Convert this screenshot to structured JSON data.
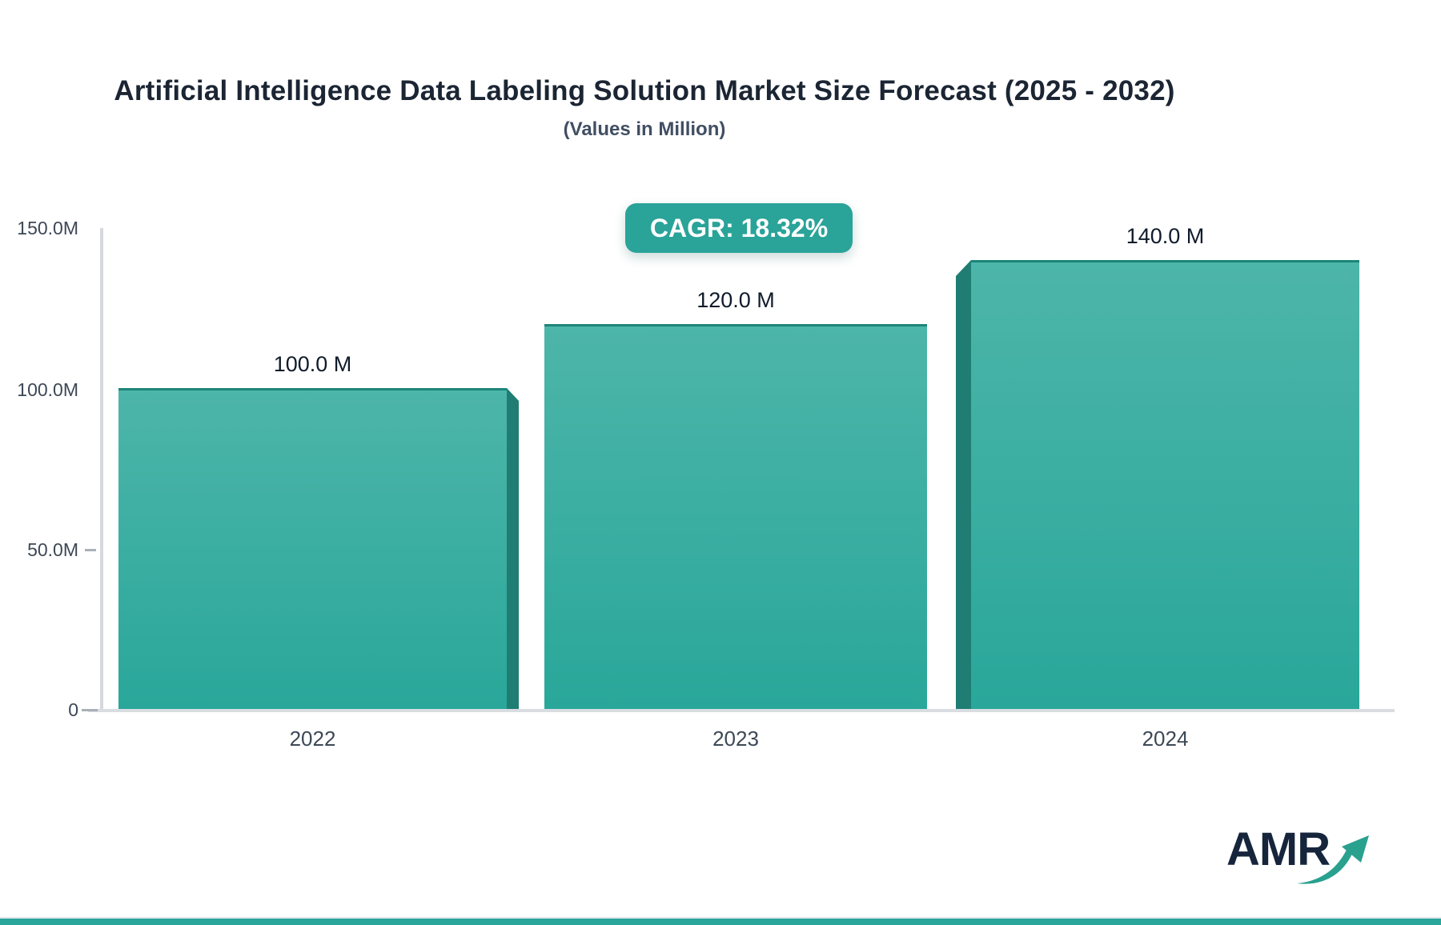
{
  "page": {
    "background": "#ffffff",
    "accent_bar_color": "#2aa69a",
    "hairline_color": "#e2e6ea"
  },
  "chart_data": {
    "type": "bar",
    "title": "Artificial Intelligence Data Labeling Solution Market Size Forecast (2025 - 2032)",
    "subtitle": "(Values in Million)",
    "cagr_badge": "CAGR: 18.32%",
    "categories": [
      "2022",
      "2023",
      "2024"
    ],
    "values": [
      100.0,
      120.0,
      140.0
    ],
    "value_labels": [
      "100.0 M",
      "120.0 M",
      "140.0 M"
    ],
    "unit": "Million",
    "ylim": [
      0,
      150
    ],
    "y_tick_labels": [
      "150.0M",
      "100.0M",
      "50.0M",
      "0"
    ],
    "grid": "off",
    "legend": "none",
    "bar_color_top": "#4db5a9",
    "bar_color_bottom": "#29a79a",
    "bar_top_edge_color": "#1d8579",
    "bar_side_color": "#1f7d73",
    "badge_color": "#2aa399",
    "axis_line_color": "#d5d9de",
    "axis_text_color": "#3d4856"
  },
  "branding": {
    "logo_text": "AMR",
    "logo_color": "#16243c",
    "arrow_color": "#2aa08f",
    "arrow_icon": "growth-arrow-icon"
  }
}
